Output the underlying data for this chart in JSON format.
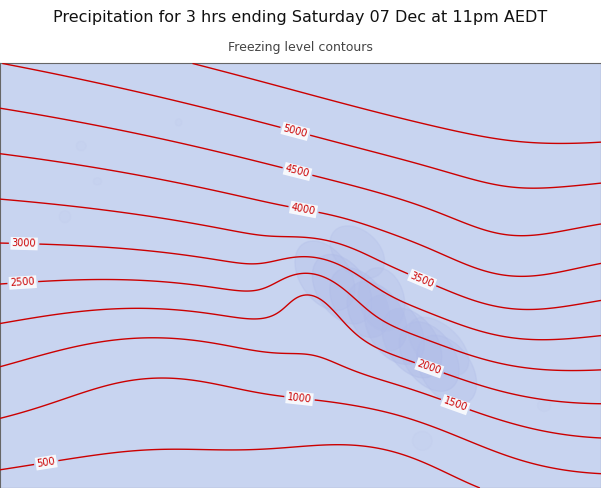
{
  "title": "Precipitation for 3 hrs ending Saturday 07 Dec at 11pm AEDT",
  "subtitle": "Freezing level contours",
  "title_fontsize": 11.5,
  "subtitle_fontsize": 9,
  "fig_width": 6.01,
  "fig_height": 4.88,
  "dpi": 100,
  "ocean_color": "#c8d4f0",
  "land_color": "#888888",
  "contour_color": "#cc0000",
  "contour_linewidth": 1.0,
  "contour_label_fontsize": 7,
  "title_bg": "#ffffff",
  "map_extent": [
    108,
    182,
    -56,
    -20
  ],
  "contour_levels": [
    500,
    1000,
    1500,
    2000,
    2500,
    3000,
    3500,
    4000,
    4500,
    5000,
    5500
  ],
  "label_levels": [
    500,
    1000,
    1500,
    2000,
    2500,
    3000,
    3500,
    4000,
    4500,
    5000
  ]
}
